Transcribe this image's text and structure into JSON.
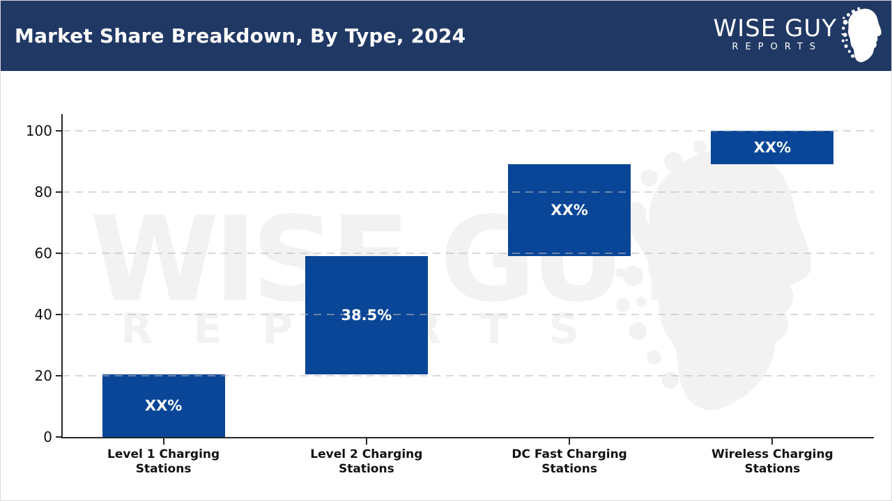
{
  "header": {
    "title": "Market Share Breakdown, By Type, 2024",
    "logo": {
      "line1": "WISE GUY",
      "line2": "REPORTS"
    }
  },
  "watermark": {
    "line1": "WISE GUY",
    "line2": "REPORTS"
  },
  "colors": {
    "header_bg": "#203864",
    "bar": "#0a4697",
    "grid": "#dcdcdc",
    "axis": "#262626",
    "bar_label": "#ffffff",
    "watermark": "#f2f2f2"
  },
  "chart_data": {
    "type": "bar",
    "subtype": "waterfall",
    "title": "Market Share Breakdown, By Type, 2024",
    "xlabel": "",
    "ylabel": "",
    "ylim": [
      0,
      100
    ],
    "yticks": [
      0,
      20,
      40,
      60,
      80,
      100
    ],
    "grid": "horizontal dashed",
    "bar_color": "#0a4697",
    "categories": [
      "Level 1 Charging Stations",
      "Level 2 Charging Stations",
      "DC Fast Charging Stations",
      "Wireless Charging Stations"
    ],
    "bars": [
      {
        "category": "Level 1 Charging Stations",
        "category_lines": [
          "Level 1 Charging",
          "Stations"
        ],
        "start": 0,
        "end": 20.5,
        "value_label": "XX%"
      },
      {
        "category": "Level 2 Charging Stations",
        "category_lines": [
          "Level 2 Charging",
          "Stations"
        ],
        "start": 20.5,
        "end": 59,
        "value_label": "38.5%"
      },
      {
        "category": "DC Fast Charging Stations",
        "category_lines": [
          "DC Fast Charging",
          "Stations"
        ],
        "start": 59,
        "end": 89,
        "value_label": "XX%"
      },
      {
        "category": "Wireless Charging Stations",
        "category_lines": [
          "Wireless Charging",
          "Stations"
        ],
        "start": 89,
        "end": 100,
        "value_label": "XX%"
      }
    ]
  }
}
